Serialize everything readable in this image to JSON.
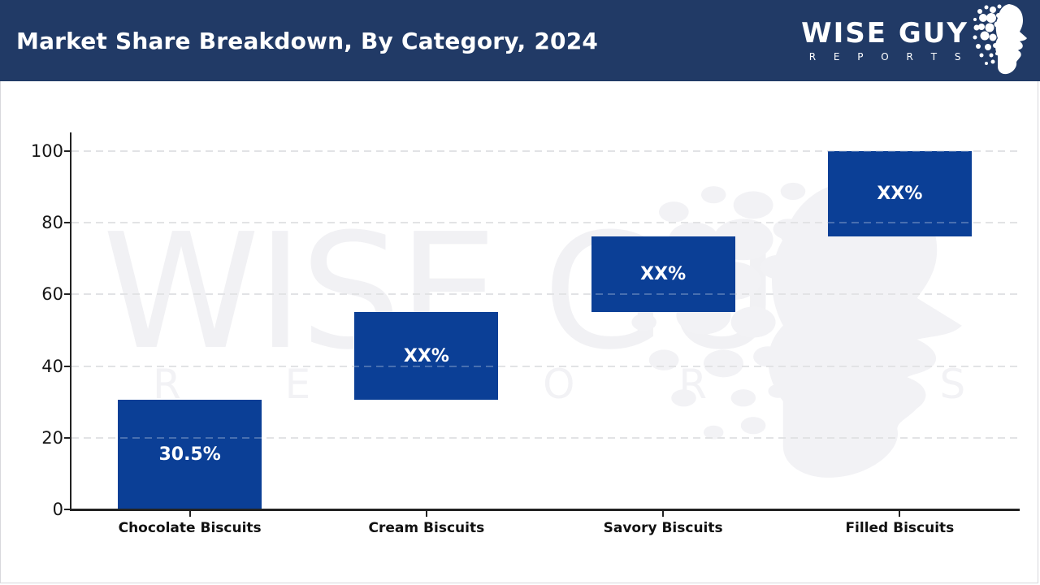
{
  "header": {
    "title": "Market Share Breakdown, By Category, 2024",
    "logo": {
      "line1": "WISE GUY",
      "line2": "R E P O R T S"
    }
  },
  "watermark": {
    "line1": "WISE GUY",
    "line2": "R E P O R T S"
  },
  "colors": {
    "header_bg": "#213a66",
    "bar": "#0b3f96",
    "grid": "#d9dadc",
    "axis": "#222222",
    "tick_text": "#151515",
    "value_label_text": "#ffffff",
    "watermark": "#f1f1f4"
  },
  "chart_data": {
    "type": "bar",
    "subtype": "waterfall",
    "title": "Market Share Breakdown, By Category, 2024",
    "categories": [
      "Chocolate Biscuits",
      "Cream Biscuits",
      "Savory Biscuits",
      "Filled Biscuits"
    ],
    "segments": [
      {
        "category": "Chocolate Biscuits",
        "start": 0,
        "end": 30.5,
        "label": "30.5%"
      },
      {
        "category": "Cream Biscuits",
        "start": 30.5,
        "end": 55,
        "label": "XX%"
      },
      {
        "category": "Savory Biscuits",
        "start": 55,
        "end": 76.2,
        "label": "XX%"
      },
      {
        "category": "Filled Biscuits",
        "start": 76.2,
        "end": 100,
        "label": "XX%"
      }
    ],
    "yticks": [
      0,
      20,
      40,
      60,
      80,
      100
    ],
    "ylim": [
      0,
      100
    ],
    "xlabel": "",
    "ylabel": "",
    "grid": "dashed-horizontal",
    "legend": "none",
    "bar_color": "#0b3f96"
  }
}
